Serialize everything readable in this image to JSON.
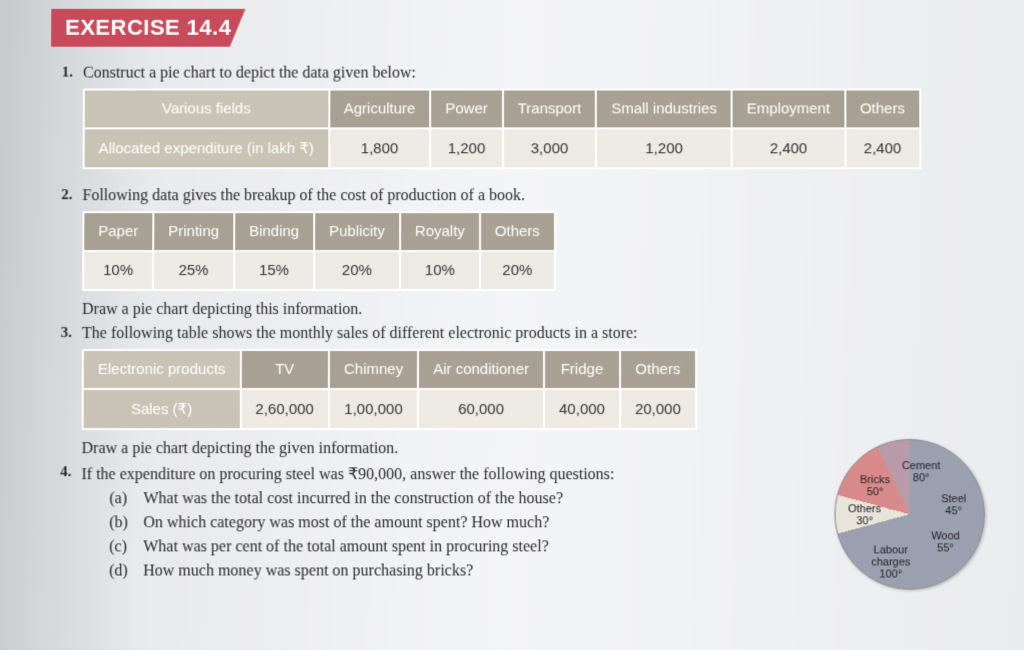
{
  "exercise_tag": "EXERCISE 14.4",
  "q1": {
    "num": "1.",
    "text": "Construct a pie chart to depict the data given below:",
    "table": {
      "headers": [
        "Various fields",
        "Agriculture",
        "Power",
        "Transport",
        "Small industries",
        "Employment",
        "Others"
      ],
      "rowhead": "Allocated expenditure (in lakh ₹)",
      "values": [
        "1,800",
        "1,200",
        "3,000",
        "1,200",
        "2,400",
        "2,400"
      ],
      "header_bg": "#a8a193",
      "rowhead_bg": "#c9c3b5",
      "cell_bg": "#edeae3"
    }
  },
  "q2": {
    "num": "2.",
    "text": "Following data gives the breakup of the cost of production of a book.",
    "table": {
      "headers": [
        "Paper",
        "Printing",
        "Binding",
        "Publicity",
        "Royalty",
        "Others"
      ],
      "values": [
        "10%",
        "25%",
        "15%",
        "20%",
        "10%",
        "20%"
      ]
    },
    "after": "Draw a pie chart depicting this information."
  },
  "q3": {
    "num": "3.",
    "text": "The following table shows the monthly sales of different electronic products in a store:",
    "table": {
      "headers": [
        "Electronic products",
        "TV",
        "Chimney",
        "Air conditioner",
        "Fridge",
        "Others"
      ],
      "rowhead": "Sales (₹)",
      "values": [
        "2,60,000",
        "1,00,000",
        "60,000",
        "40,000",
        "20,000"
      ]
    },
    "after": "Draw a pie chart depicting the given information."
  },
  "q4": {
    "num": "4.",
    "text": "If the expenditure on procuring steel was ₹90,000, answer the following questions:",
    "subs": [
      {
        "lab": "(a)",
        "t": "What was the total cost incurred in the construction of the house?"
      },
      {
        "lab": "(b)",
        "t": "On which category was most of the amount spent? How much?"
      },
      {
        "lab": "(c)",
        "t": "What was per cent of the total amount spent in procuring steel?"
      },
      {
        "lab": "(d)",
        "t": "How much money was spent on purchasing bricks?"
      }
    ]
  },
  "pie": {
    "slices": [
      {
        "label": "Labour charges",
        "deg": "100°",
        "angle": 100,
        "color": "#9aa0b0"
      },
      {
        "label": "Others",
        "deg": "30°",
        "angle": 30,
        "color": "#e8e4da"
      },
      {
        "label": "Bricks",
        "deg": "50°",
        "angle": 50,
        "color": "#d88a8a"
      },
      {
        "label": "Cement",
        "deg": "80°",
        "angle": 80,
        "color": "#b89aa8"
      },
      {
        "label": "Steel",
        "deg": "45°",
        "angle": 45,
        "color": "#b8c8a8"
      },
      {
        "label": "Wood",
        "deg": "55°",
        "angle": 55,
        "color": "#d8d4a0"
      }
    ],
    "start_angle": 155
  }
}
